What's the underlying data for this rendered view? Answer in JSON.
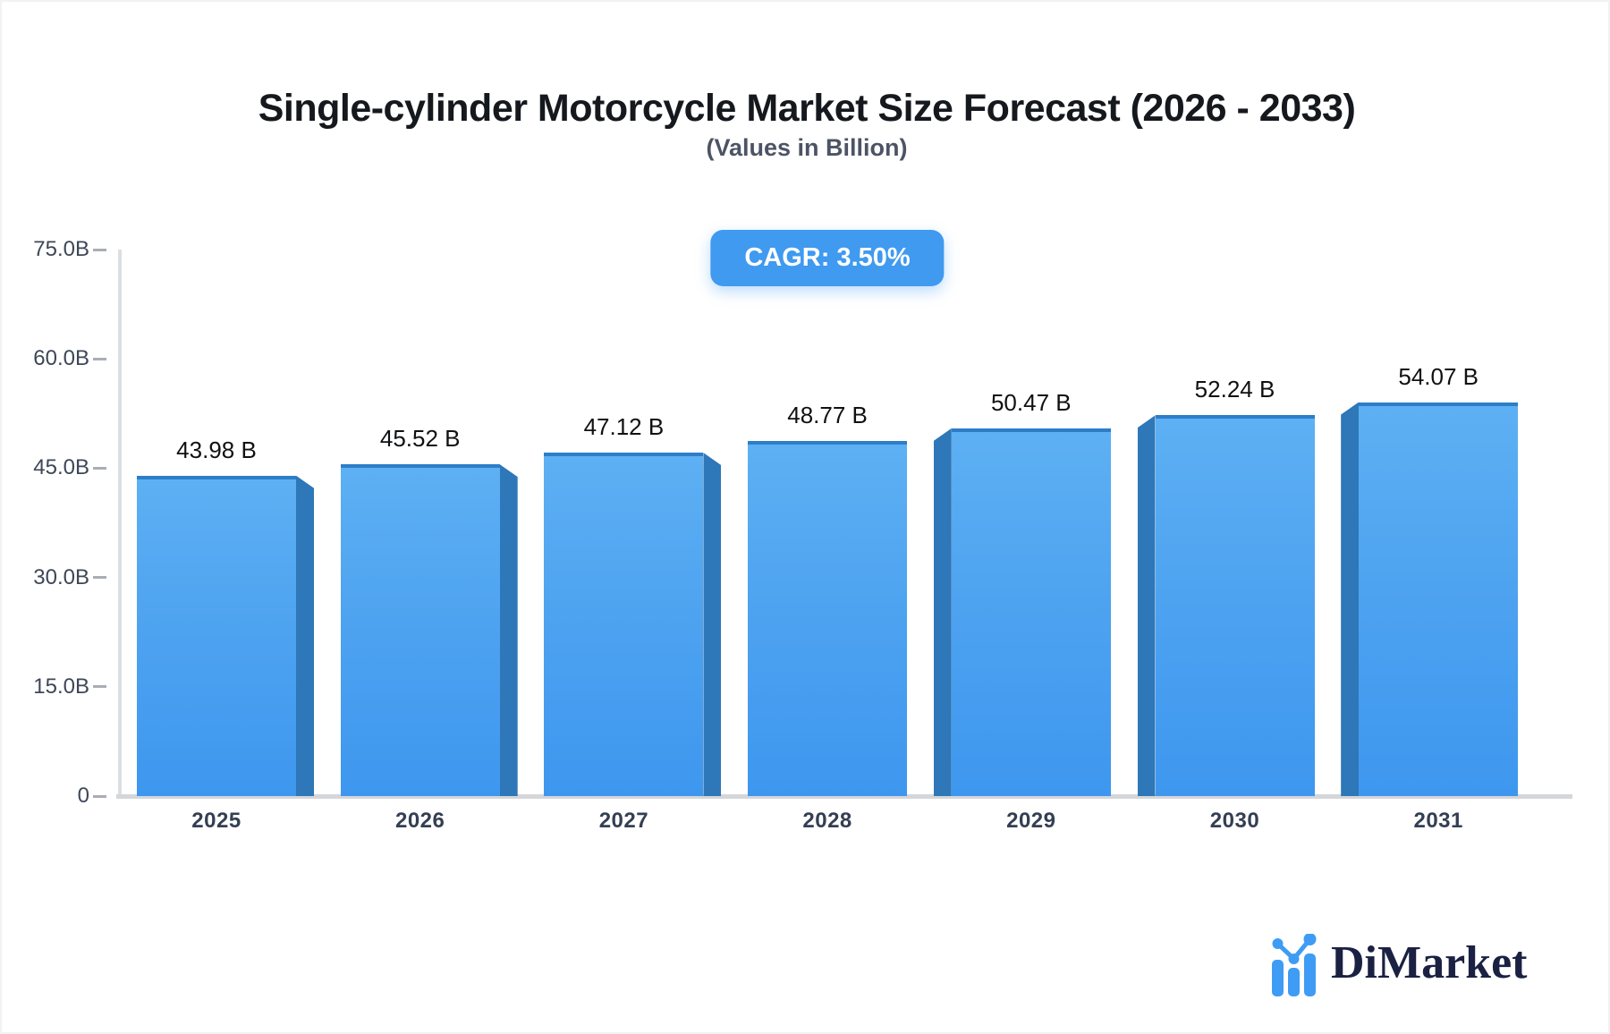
{
  "header": {
    "title": "Single-cylinder Motorcycle Market Size Forecast (2026 - 2033)",
    "subtitle": "(Values in Billion)",
    "cagr_badge": "CAGR: 3.50%"
  },
  "chart_data": {
    "type": "bar",
    "categories": [
      "2025",
      "2026",
      "2027",
      "2028",
      "2029",
      "2030",
      "2031"
    ],
    "values": [
      43.98,
      45.52,
      47.12,
      48.77,
      50.47,
      52.24,
      54.07
    ],
    "value_labels": [
      "43.98 B",
      "45.52 B",
      "47.12 B",
      "48.77 B",
      "50.47 B",
      "52.24 B",
      "54.07 B"
    ],
    "y_tick_labels": [
      "75.0B",
      "60.0B",
      "45.0B",
      "30.0B",
      "15.0B",
      "0"
    ],
    "ylim": [
      0,
      75
    ],
    "xlabel": "",
    "ylabel": "",
    "grid": false,
    "legend": false,
    "bar_face_color": "#4da2f0",
    "bar_side_color": "#2e77b8",
    "bar_top_edge_color": "#2d7dc8"
  },
  "branding": {
    "logo_text": "DiMarket",
    "logo_icon": "bar-line-chart-icon",
    "logo_icon_color": "#3f9cf4",
    "logo_text_color": "#1a2142"
  },
  "colors": {
    "badge_bg": "#3f9af0",
    "axis_line": "#d8dade",
    "tick_text": "#3d4757",
    "title_text": "#15181d"
  }
}
